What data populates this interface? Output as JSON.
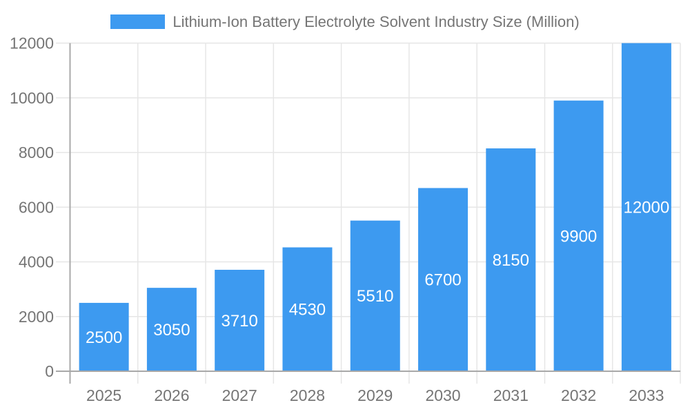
{
  "chart_data": {
    "type": "bar",
    "title": "Lithium-Ion Battery Electrolyte Solvent Industry Size (Million)",
    "categories": [
      "2025",
      "2026",
      "2027",
      "2028",
      "2029",
      "2030",
      "2031",
      "2032",
      "2033"
    ],
    "values": [
      2500,
      3050,
      3710,
      4530,
      5510,
      6700,
      8150,
      9900,
      12000
    ],
    "xlabel": "",
    "ylabel": "",
    "ylim": [
      0,
      12000
    ],
    "ytick_step": 2000,
    "ytick_labels": [
      "0",
      "2000",
      "4000",
      "6000",
      "8000",
      "10000",
      "12000"
    ],
    "grid": true,
    "legend_position": "top-center",
    "bar_color": "#3d9af0",
    "value_label_color": "#ffffff",
    "value_labels_shown": true
  },
  "colors": {
    "background": "#ffffff",
    "accent": "#3d9af0",
    "axis_text": "#757575",
    "title_text": "#757575",
    "grid_line": "#e6e6e6",
    "axis_line": "#a8a8a8"
  }
}
